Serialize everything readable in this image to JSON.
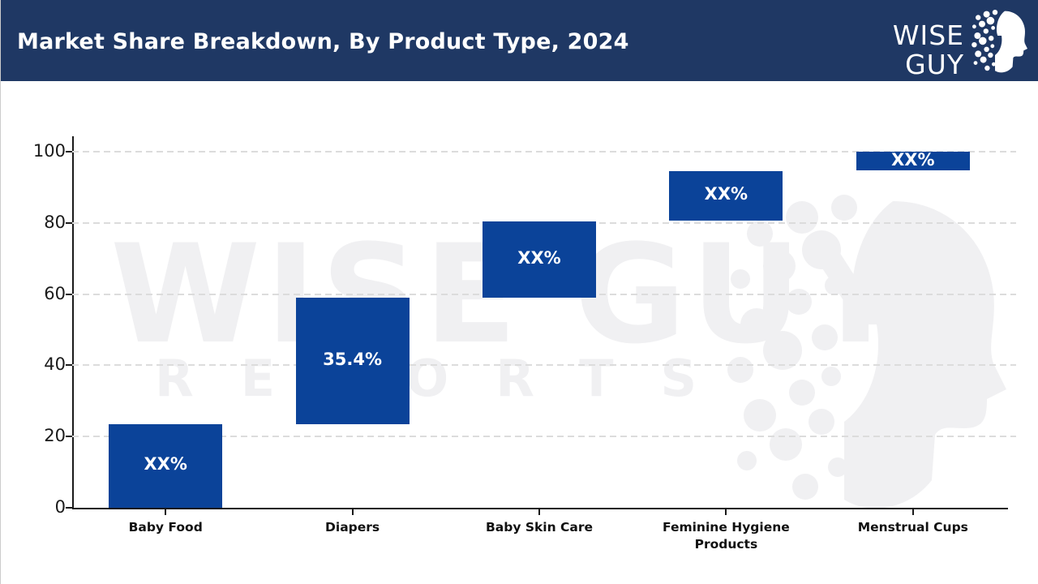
{
  "header": {
    "title": "Market Share Breakdown, By Product Type, 2024",
    "background_color": "#1F3864",
    "logo": {
      "line1": "WISE GUY",
      "line2": "R E P O R T S"
    }
  },
  "watermark": {
    "line1": "WISE GUY",
    "line2": "REPORTS"
  },
  "chart_data": {
    "type": "bar",
    "subtype": "waterfall",
    "title": "Market Share Breakdown, By Product Type, 2024",
    "xlabel": "",
    "ylabel": "",
    "ylim": [
      0,
      105
    ],
    "y_ticks": [
      0,
      20,
      40,
      60,
      80,
      100
    ],
    "grid": "dashed horizontal",
    "legend": "none",
    "bar_color": "#0B4399",
    "label_color": "#ffffff",
    "categories": [
      "Baby Food",
      "Diapers",
      "Baby Skin Care",
      "Feminine Hygiene Products",
      "Menstrual Cups"
    ],
    "segments": [
      {
        "category": "Baby Food",
        "start": 0,
        "end": 23.5,
        "value_label": "XX%"
      },
      {
        "category": "Diapers",
        "start": 23.5,
        "end": 58.9,
        "value_label": "35.4%"
      },
      {
        "category": "Baby Skin Care",
        "start": 59.0,
        "end": 80.5,
        "value_label": "XX%"
      },
      {
        "category": "Feminine Hygiene Products",
        "start": 80.7,
        "end": 94.5,
        "value_label": "XX%"
      },
      {
        "category": "Menstrual Cups",
        "start": 94.7,
        "end": 100.0,
        "value_label": "XX%"
      }
    ]
  }
}
